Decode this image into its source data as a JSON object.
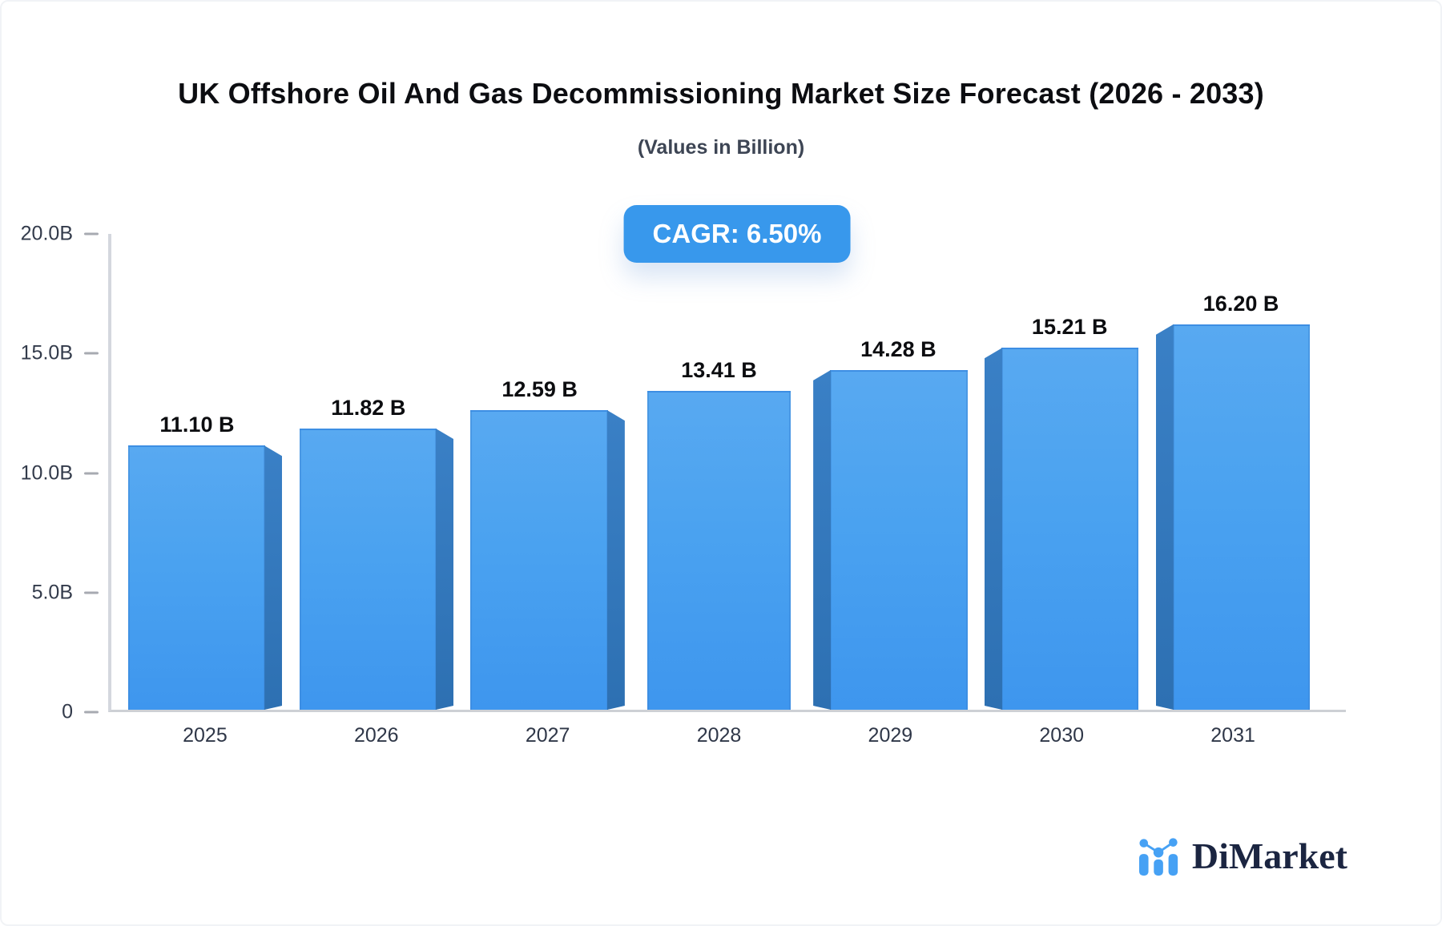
{
  "title": "UK Offshore Oil And Gas Decommissioning Market Size Forecast (2026 - 2033)",
  "subtitle": "(Values in Billion)",
  "badge": {
    "label": "CAGR: 6.50%",
    "color": "#3898ec",
    "text_color": "#ffffff"
  },
  "chart_data": {
    "type": "bar",
    "categories": [
      "2025",
      "2026",
      "2027",
      "2028",
      "2029",
      "2030",
      "2031"
    ],
    "values": [
      11.1,
      11.82,
      12.59,
      13.41,
      14.28,
      15.21,
      16.2
    ],
    "bar_labels": [
      "11.10 B",
      "11.82 B",
      "12.59 B",
      "13.41 B",
      "14.28 B",
      "15.21 B",
      "16.20 B"
    ],
    "title": "UK Offshore Oil And Gas Decommissioning Market Size Forecast (2026 - 2033)",
    "subtitle": "(Values in Billion)",
    "xlabel": "",
    "ylabel": "",
    "ylim": [
      0,
      20
    ],
    "ytick_labels": [
      "20.0B",
      "15.0B",
      "10.0B",
      "5.0B",
      "0"
    ],
    "grid": "off",
    "legend": "none",
    "style": "3d-perspective-bars",
    "bar_color_top": "#58a9f1",
    "bar_color_bottom": "#3e96ee",
    "bar_side_color": "#2d70b2"
  },
  "logo": {
    "text": "DiMarket",
    "icon": "mini-bar-line-chart-icon",
    "text_color": "#1b2541",
    "accent": "#46a1f4"
  }
}
